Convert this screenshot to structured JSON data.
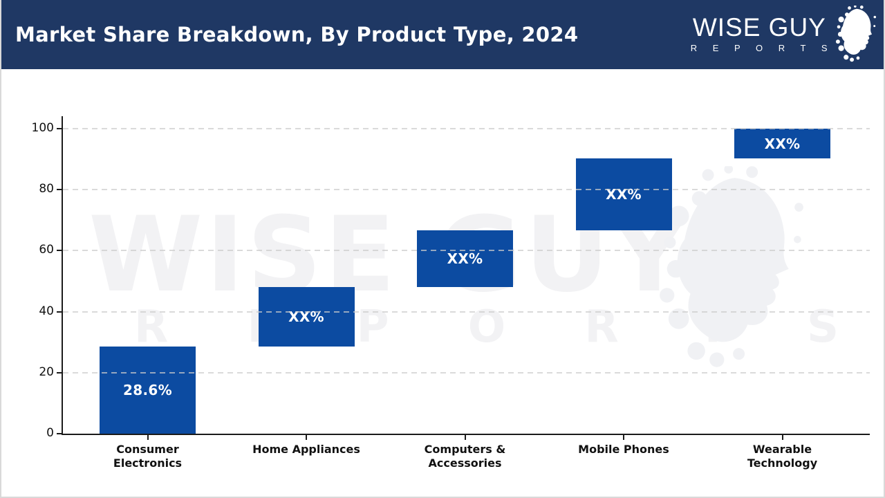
{
  "header": {
    "title": "Market Share Breakdown, By Product Type, 2024",
    "background_color": "#1f3864",
    "logo": {
      "name_line": "WISE GUY",
      "reports_line": "R E P O R T S"
    }
  },
  "watermark": {
    "name_line": "WISE GUY",
    "reports_line": "R E P O R T S"
  },
  "chart_data": {
    "type": "bar",
    "variant": "stepped-waterfall",
    "title": "Market Share Breakdown, By Product Type, 2024",
    "categories": [
      "Consumer Electronics",
      "Home Appliances",
      "Computers & Accessories",
      "Mobile Phones",
      "Wearable Technology"
    ],
    "category_lines": [
      [
        "Consumer",
        "Electronics"
      ],
      [
        "Home Appliances"
      ],
      [
        "Computers &",
        "Accessories"
      ],
      [
        "Mobile Phones"
      ],
      [
        "Wearable",
        "Technology"
      ]
    ],
    "segments": [
      {
        "category": "Consumer Electronics",
        "start": 0,
        "end": 28.6,
        "value": 28.6,
        "label": "28.6%"
      },
      {
        "category": "Home Appliances",
        "start": 28.6,
        "end": 48.0,
        "value": 19.4,
        "label": "XX%"
      },
      {
        "category": "Computers & Accessories",
        "start": 48.0,
        "end": 66.6,
        "value": 18.6,
        "label": "XX%"
      },
      {
        "category": "Mobile Phones",
        "start": 66.6,
        "end": 90.2,
        "value": 23.6,
        "label": "XX%"
      },
      {
        "category": "Wearable Technology",
        "start": 90.2,
        "end": 100.0,
        "value": 9.8,
        "label": "XX%"
      }
    ],
    "yticks": [
      0,
      20,
      40,
      60,
      80,
      100
    ],
    "ylim": [
      0,
      104
    ],
    "xlabel": "",
    "ylabel": "",
    "bar_color": "#0c4ba1",
    "axis_color": "#1a1a1a",
    "grid": "horizontal-dashed",
    "grid_color": "#d9d9d9",
    "legend": "none"
  }
}
